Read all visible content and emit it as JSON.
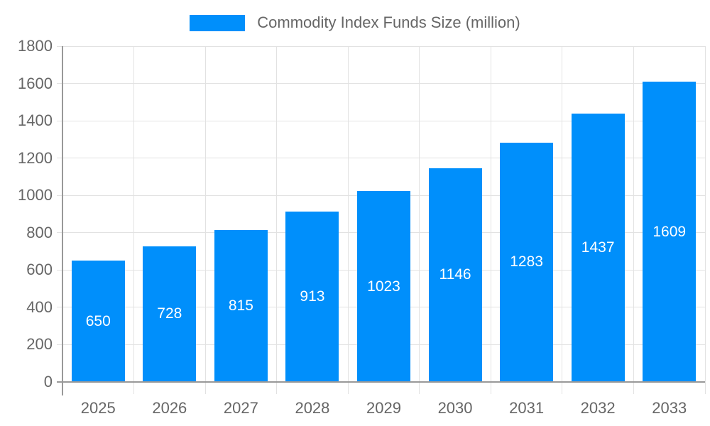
{
  "chart_data": {
    "type": "bar",
    "title": "Commodity Index Funds Size (million)",
    "categories": [
      "2025",
      "2026",
      "2027",
      "2028",
      "2029",
      "2030",
      "2031",
      "2032",
      "2033"
    ],
    "values": [
      650,
      728,
      815,
      913,
      1023,
      1146,
      1283,
      1437,
      1609
    ],
    "xlabel": "",
    "ylabel": "",
    "ylim": [
      0,
      1800
    ],
    "ytick_step": 200,
    "yticks": [
      "0",
      "200",
      "400",
      "600",
      "800",
      "1000",
      "1200",
      "1400",
      "1600",
      "1800"
    ],
    "grid": true,
    "legend_position": "top",
    "bar_color": "#008FFB",
    "value_label_color": "#ffffff",
    "tick_label_color": "#666666",
    "grid_color": "#e2e2e2",
    "axis_color": "#999999"
  }
}
